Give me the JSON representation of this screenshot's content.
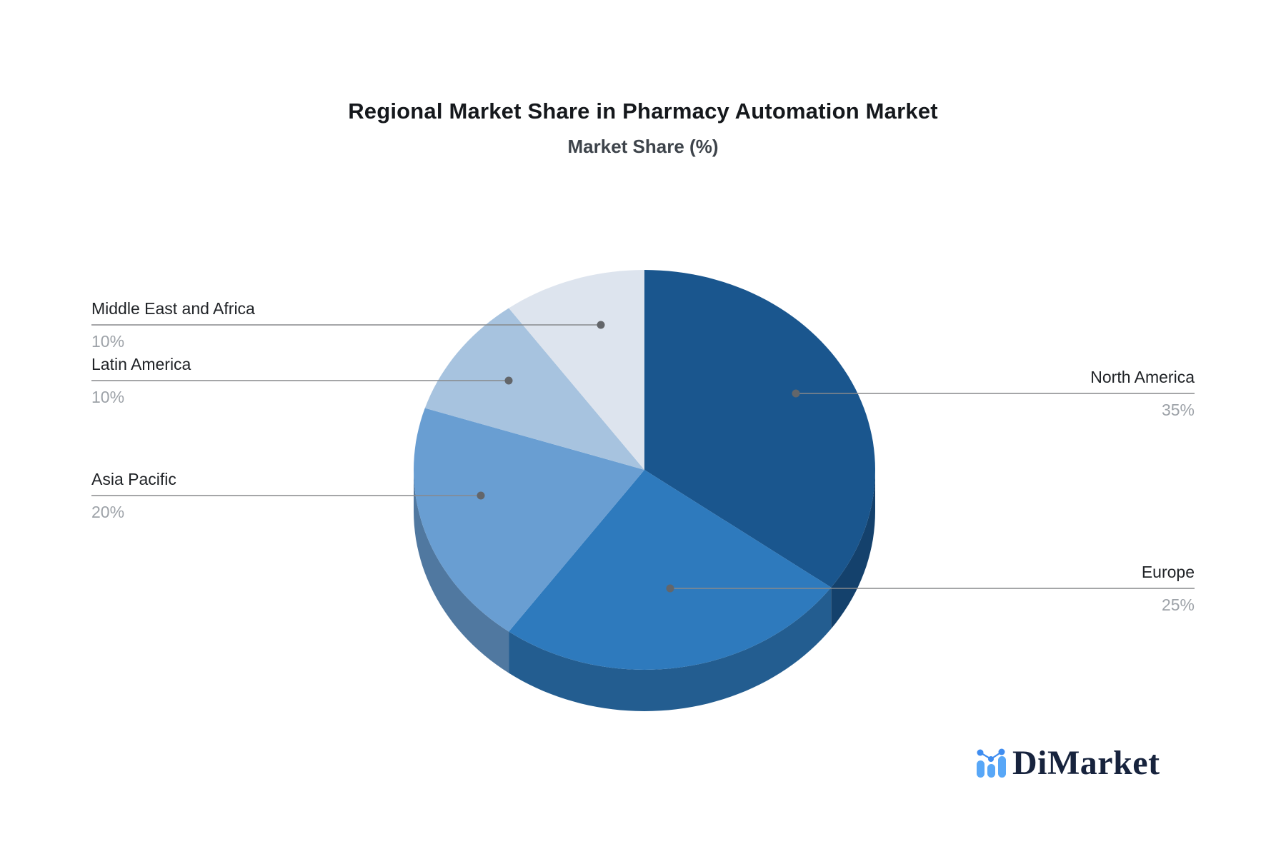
{
  "header": {
    "title": "Regional Market Share in Pharmacy Automation Market",
    "subtitle": "Market Share (%)"
  },
  "chart_data": {
    "type": "pie",
    "effect": "3d",
    "title": "Regional Market Share in Pharmacy Automation Market",
    "subtitle": "Market Share (%)",
    "start_angle_deg": 90,
    "direction": "clockwise",
    "legend": "none",
    "labels": [
      "North America",
      "Europe",
      "Asia Pacific",
      "Latin America",
      "Middle East and Africa"
    ],
    "values": [
      35,
      25,
      20,
      10,
      10
    ],
    "value_labels": [
      "35%",
      "25%",
      "20%",
      "10%",
      "10%"
    ],
    "colors": [
      "#1a568e",
      "#2e7abd",
      "#699ed2",
      "#a7c3df",
      "#dde4ee"
    ],
    "callout_line_color": "#87898c",
    "callout_dot_color": "#63666a"
  },
  "branding": {
    "logo_text": "DiMarket",
    "logo_text_color": "#17233d",
    "icon_bar_color": "#58a7f7",
    "icon_dot_color": "#3f8df0"
  }
}
